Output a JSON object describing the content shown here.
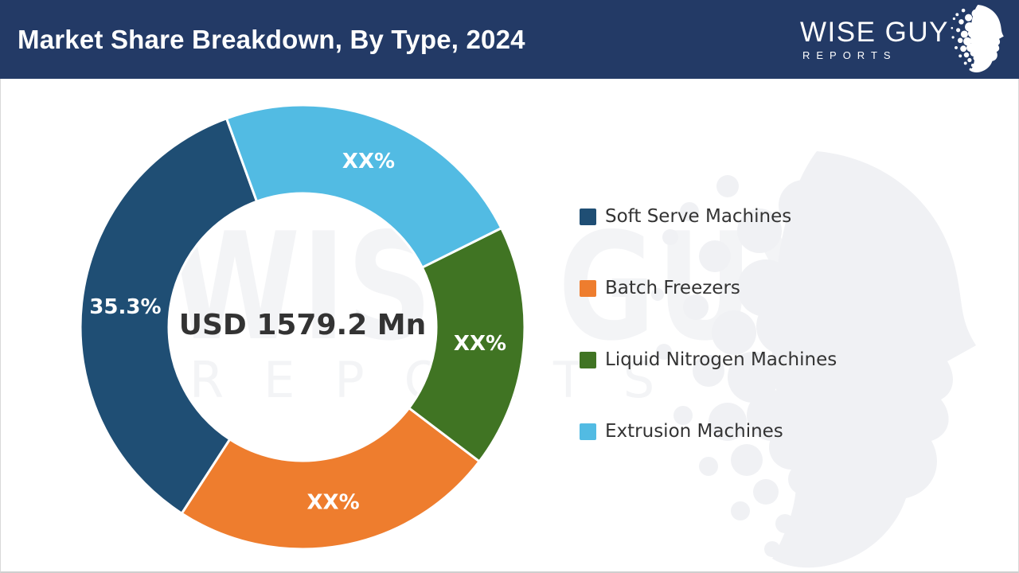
{
  "header": {
    "title": "Market Share Breakdown, By Type, 2024",
    "logo": {
      "line1": "WISE GUY",
      "line2": "REPORTS"
    }
  },
  "watermark": {
    "line1": "WISE GUY",
    "line2": "REPORTS"
  },
  "chart_data": {
    "type": "pie",
    "subtype": "donut",
    "title": "Market Share Breakdown, By Type, 2024",
    "center_label": "USD 1579.2 Mn",
    "start_angle_deg": 110,
    "direction": "counterclockwise",
    "inner_radius_ratio": 0.6,
    "legend_position": "right",
    "segments": [
      {
        "name": "Soft Serve Machines",
        "label": "35.3%",
        "value_pct": 35.3,
        "color": "#1f4e74"
      },
      {
        "name": "Batch Freezers",
        "label": "XX%",
        "value_pct": 23.8,
        "color": "#ee7d2e"
      },
      {
        "name": "Liquid Nitrogen Machines",
        "label": "XX%",
        "value_pct": 17.7,
        "color": "#407423"
      },
      {
        "name": "Extrusion Machines",
        "label": "XX%",
        "value_pct": 23.2,
        "color": "#52bbe3"
      }
    ]
  }
}
